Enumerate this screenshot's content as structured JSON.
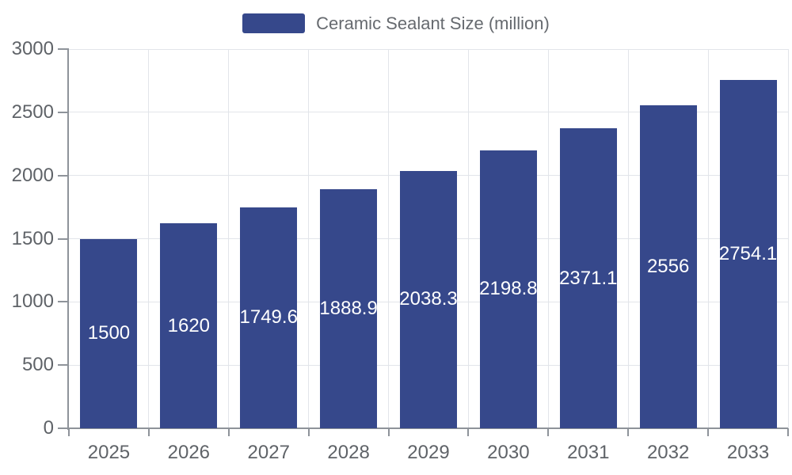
{
  "chart_data": {
    "type": "bar",
    "title": "",
    "legend": {
      "label": "Ceramic Sealant Size (million)",
      "position": "top-center"
    },
    "categories": [
      "2025",
      "2026",
      "2027",
      "2028",
      "2029",
      "2030",
      "2031",
      "2032",
      "2033"
    ],
    "series": [
      {
        "name": "Ceramic Sealant Size (million)",
        "values": [
          1500,
          1620,
          1749.6,
          1888.9,
          2038.3,
          2198.8,
          2371.1,
          2556,
          2754.1
        ],
        "value_labels": [
          "1500",
          "1620",
          "1749.6",
          "1888.9",
          "2038.3",
          "2198.8",
          "2371.1",
          "2556",
          "2754.1"
        ],
        "color": "#36488B"
      }
    ],
    "xlabel": "",
    "ylabel": "",
    "ylim": [
      0,
      3000
    ],
    "yticks": [
      0,
      500,
      1000,
      1500,
      2000,
      2500,
      3000
    ],
    "ytick_labels": [
      "0",
      "500",
      "1000",
      "1500",
      "2000",
      "2500",
      "3000"
    ],
    "grid": true,
    "value_label_position": "inside-middle",
    "value_label_color": "#FFFFFF"
  },
  "colors": {
    "bar": "#36488B",
    "grid_line": "#E2E5EA",
    "axis_line": "#8E939A",
    "axis_text": "#5F6368",
    "legend_text": "#666A6F",
    "background": "#FFFFFF"
  }
}
